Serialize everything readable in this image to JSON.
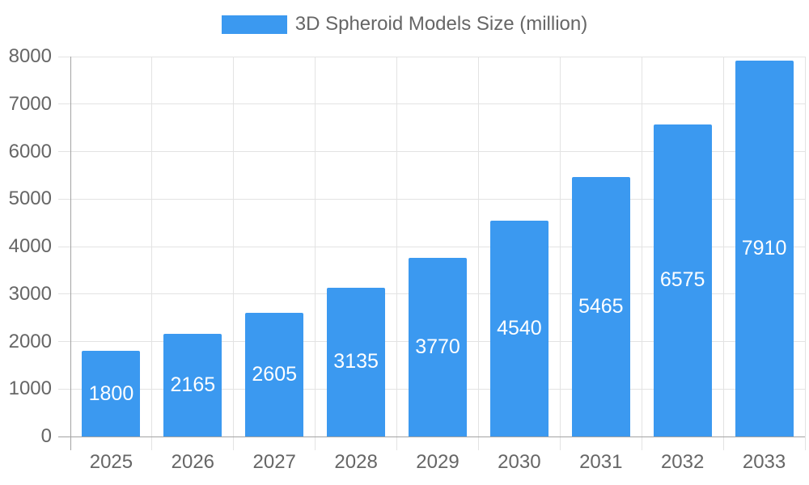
{
  "chart_data": {
    "type": "bar",
    "title": "3D Spheroid Models Size (million)",
    "legend_position": "top",
    "categories": [
      "2025",
      "2026",
      "2027",
      "2028",
      "2029",
      "2030",
      "2031",
      "2032",
      "2033"
    ],
    "values": [
      1800,
      2165,
      2605,
      3135,
      3770,
      4540,
      5465,
      6575,
      7910
    ],
    "xlabel": "",
    "ylabel": "",
    "ylim": [
      0,
      8000
    ],
    "y_ticks": [
      0,
      1000,
      2000,
      3000,
      4000,
      5000,
      6000,
      7000,
      8000
    ],
    "grid": true,
    "bar_labels_visible": true,
    "colors": {
      "bar": "#3B99F0",
      "value_label": "#FFFFFF",
      "axis_text": "#666666",
      "gridline": "#E3E3E3",
      "axis_line": "#A3A3A3",
      "background": "#FFFFFF"
    }
  }
}
